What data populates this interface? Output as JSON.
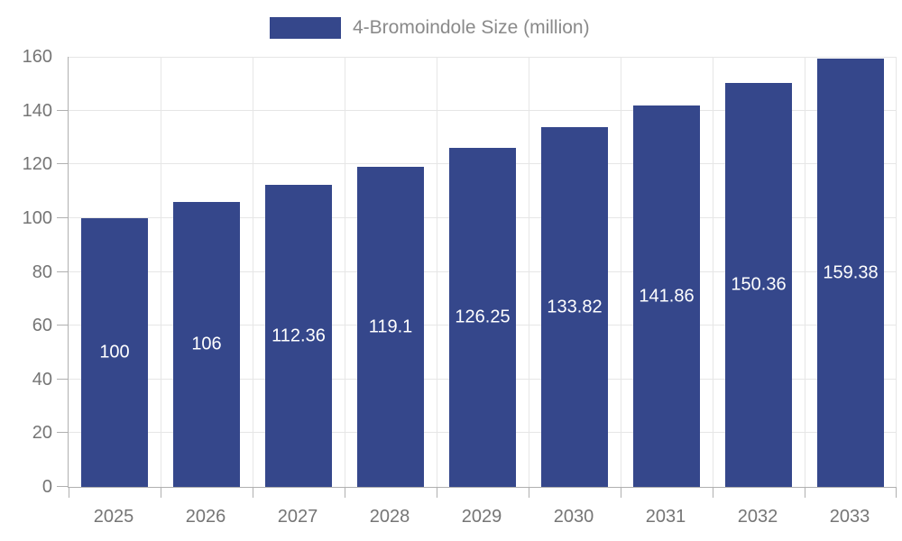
{
  "chart_data": {
    "type": "bar",
    "title": "4-Bromoindole Size (million)",
    "legend_label": "4-Bromoindole Size (million)",
    "legend_position": "top",
    "categories": [
      "2025",
      "2026",
      "2027",
      "2028",
      "2029",
      "2030",
      "2031",
      "2032",
      "2033"
    ],
    "series": [
      {
        "name": "4-Bromoindole Size (million)",
        "values": [
          100,
          106,
          112.36,
          119.1,
          126.25,
          133.82,
          141.86,
          150.36,
          159.38
        ],
        "value_labels": [
          "100",
          "106",
          "112.36",
          "119.1",
          "126.25",
          "133.82",
          "141.86",
          "150.36",
          "159.38"
        ]
      }
    ],
    "xlabel": "",
    "ylabel": "",
    "ylim": [
      0,
      160
    ],
    "y_ticks": [
      0,
      20,
      40,
      60,
      80,
      100,
      120,
      140,
      160
    ],
    "grid": true,
    "colors": {
      "bar": "#35478B",
      "bar_label": "#FFFFFF",
      "axis_line": "#B0B0B0",
      "grid_line": "#E6E6E6",
      "tick_label": "#757575",
      "legend_text": "#8A8A8A",
      "background": "#FFFFFF"
    }
  }
}
